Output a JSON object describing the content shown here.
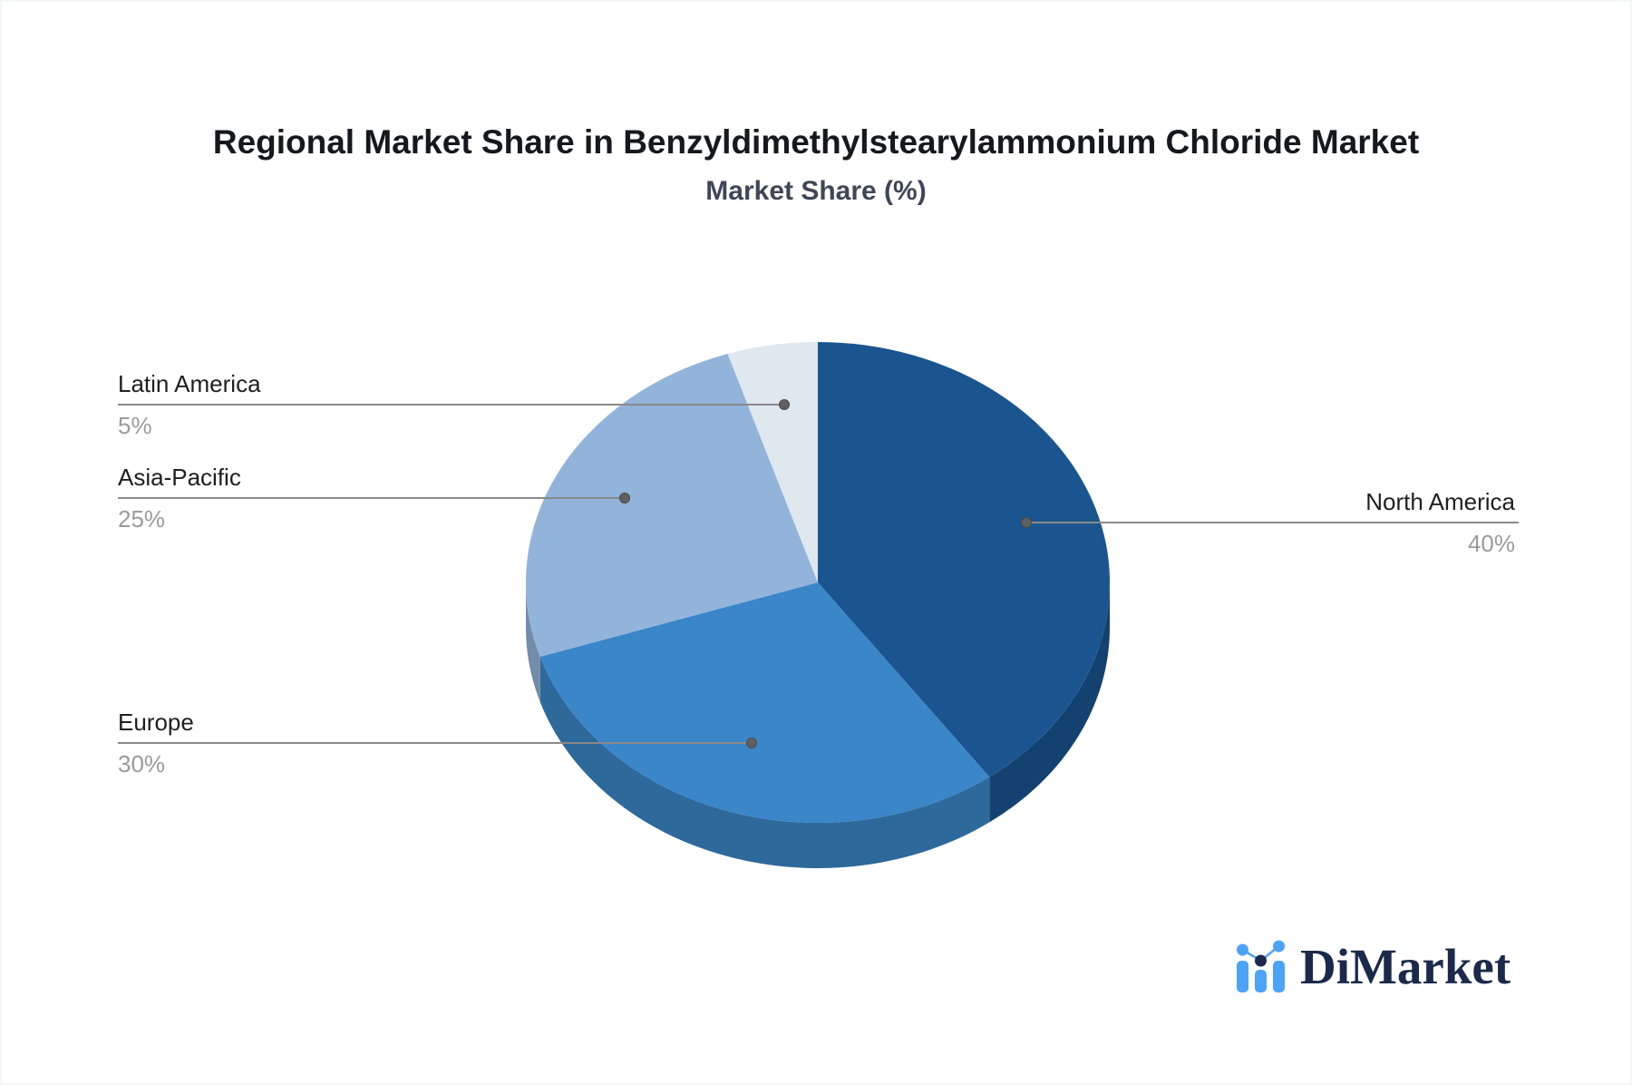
{
  "header": {
    "title": "Regional Market Share in Benzyldimethylstearylammonium Chloride Market",
    "subtitle": "Market Share (%)"
  },
  "chart_data": {
    "type": "pie",
    "style": "3d",
    "title": "Regional Market Share in Benzyldimethylstearylammonium Chloride Market",
    "subtitle": "Market Share (%)",
    "unit": "%",
    "start_angle_deg": -90,
    "direction": "clockwise",
    "legend_position": "callout-labels",
    "slices": [
      {
        "label": "North America",
        "value": 40,
        "color": "#1a558f"
      },
      {
        "label": "Europe",
        "value": 30,
        "color": "#3b86c8"
      },
      {
        "label": "Asia-Pacific",
        "value": 25,
        "color": "#92b4da"
      },
      {
        "label": "Latin America",
        "value": 5,
        "color": "#dfe7ef"
      }
    ]
  },
  "callouts": {
    "latin_america": {
      "name": "Latin America",
      "value": "5%"
    },
    "asia_pacific": {
      "name": "Asia-Pacific",
      "value": "25%"
    },
    "europe": {
      "name": "Europe",
      "value": "30%"
    },
    "north_america": {
      "name": "North America",
      "value": "40%"
    }
  },
  "branding": {
    "logo_text": "DiMarket"
  },
  "theme": {
    "background": "#ffffff",
    "title_color": "#16181d",
    "subtitle_color": "#3e4757",
    "label_color": "#1f1f1f",
    "percent_color": "#9b9b9b",
    "leader_line_color": "#8a8a8a",
    "leader_dot_color": "#606060",
    "pie_wall_shade_factor": 0.78,
    "logo_blue": "#4da3f7",
    "logo_navy": "#1b2a4a"
  }
}
